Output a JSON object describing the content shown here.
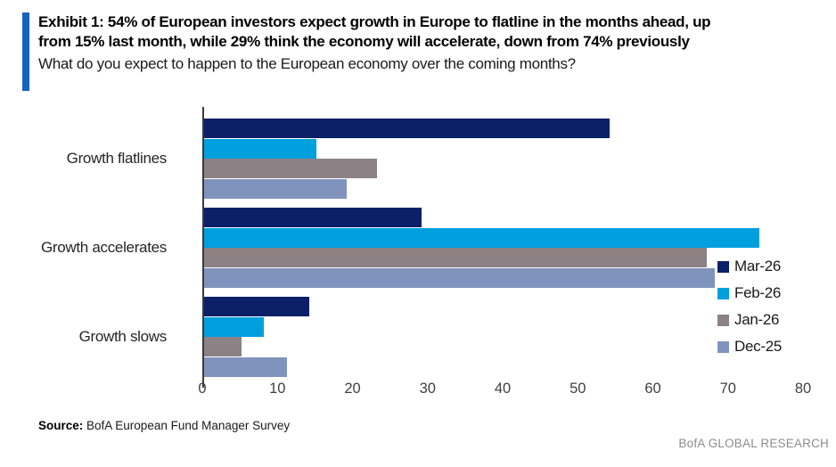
{
  "header": {
    "exhibit_title_line1": "Exhibit 1: 54% of European investors expect growth in Europe to flatline in the months ahead, up",
    "exhibit_title_line2": "from 15% last month, while 29% think the economy will accelerate, down from 74% previously",
    "subtitle": "What do you expect to happen to the European economy over the coming months?",
    "accent_color": "#1565C0"
  },
  "chart_data": {
    "type": "bar",
    "orientation": "horizontal",
    "title": "What do you expect to happen to the European economy over the coming months?",
    "categories": [
      "Growth flatlines",
      "Growth accelerates",
      "Growth slows"
    ],
    "series": [
      {
        "name": "Mar-26",
        "color": "#0A2167",
        "values": [
          54,
          29,
          14
        ]
      },
      {
        "name": "Feb-26",
        "color": "#009FDE",
        "values": [
          15,
          74,
          8
        ]
      },
      {
        "name": "Jan-26",
        "color": "#8C8285",
        "values": [
          23,
          67,
          5
        ]
      },
      {
        "name": "Dec-25",
        "color": "#8093BC",
        "values": [
          19,
          68,
          11
        ]
      }
    ],
    "xlabel": "",
    "ylabel": "",
    "xlim": [
      0,
      80
    ],
    "x_ticks": [
      0,
      10,
      20,
      30,
      40,
      50,
      60,
      70,
      80
    ],
    "grid": false,
    "legend_position": "right",
    "axis_color": "#3a3a3a"
  },
  "footer": {
    "source_label": "Source:",
    "source_text": " BofA European Fund Manager Survey",
    "brand": "BofA GLOBAL RESEARCH"
  }
}
